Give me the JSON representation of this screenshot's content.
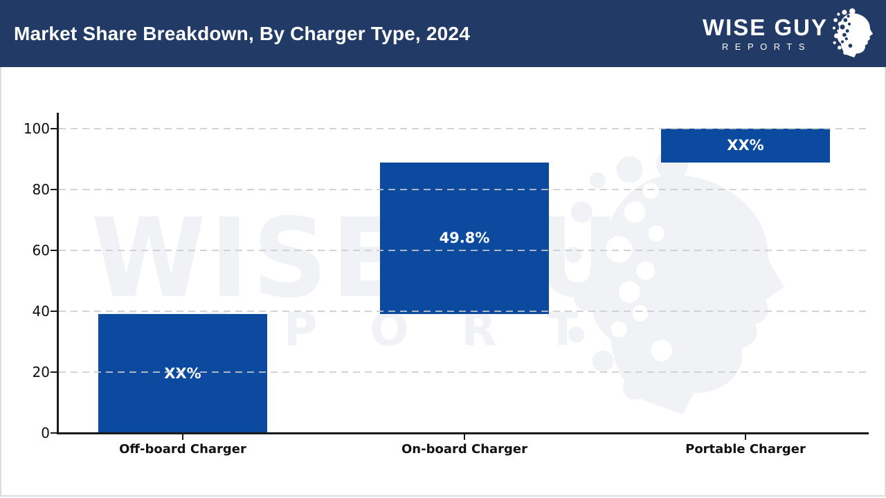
{
  "header": {
    "bg_color": "#213a66",
    "logo": {
      "line1": "WISE GUY",
      "line2": "REPORTS"
    }
  },
  "watermark": {
    "line1": "WISE GUY",
    "line2": "REPORTS"
  },
  "chart_data": {
    "type": "bar",
    "subtype": "floating-waterfall",
    "title": "Market Share Breakdown, By Charger Type, 2024",
    "categories": [
      "Off-board Charger",
      "On-board Charger",
      "Portable Charger"
    ],
    "series": [
      {
        "name": "Market share (%)",
        "bar_from": [
          0,
          39.1,
          88.9
        ],
        "bar_to": [
          39.1,
          88.9,
          100
        ],
        "data_labels": [
          "XX%",
          "49.8%",
          "XX%"
        ]
      }
    ],
    "xlabel": "",
    "ylabel": "",
    "ylim": [
      0,
      105
    ],
    "yticks": [
      0,
      20,
      40,
      60,
      80,
      100
    ],
    "grid": "horizontal-dashed",
    "grid_color": "#cbcbcb",
    "legend": false,
    "bar_color": "#0b4a9e",
    "data_label_color": "#ffffff",
    "axis_color": "#1a1a1a"
  }
}
